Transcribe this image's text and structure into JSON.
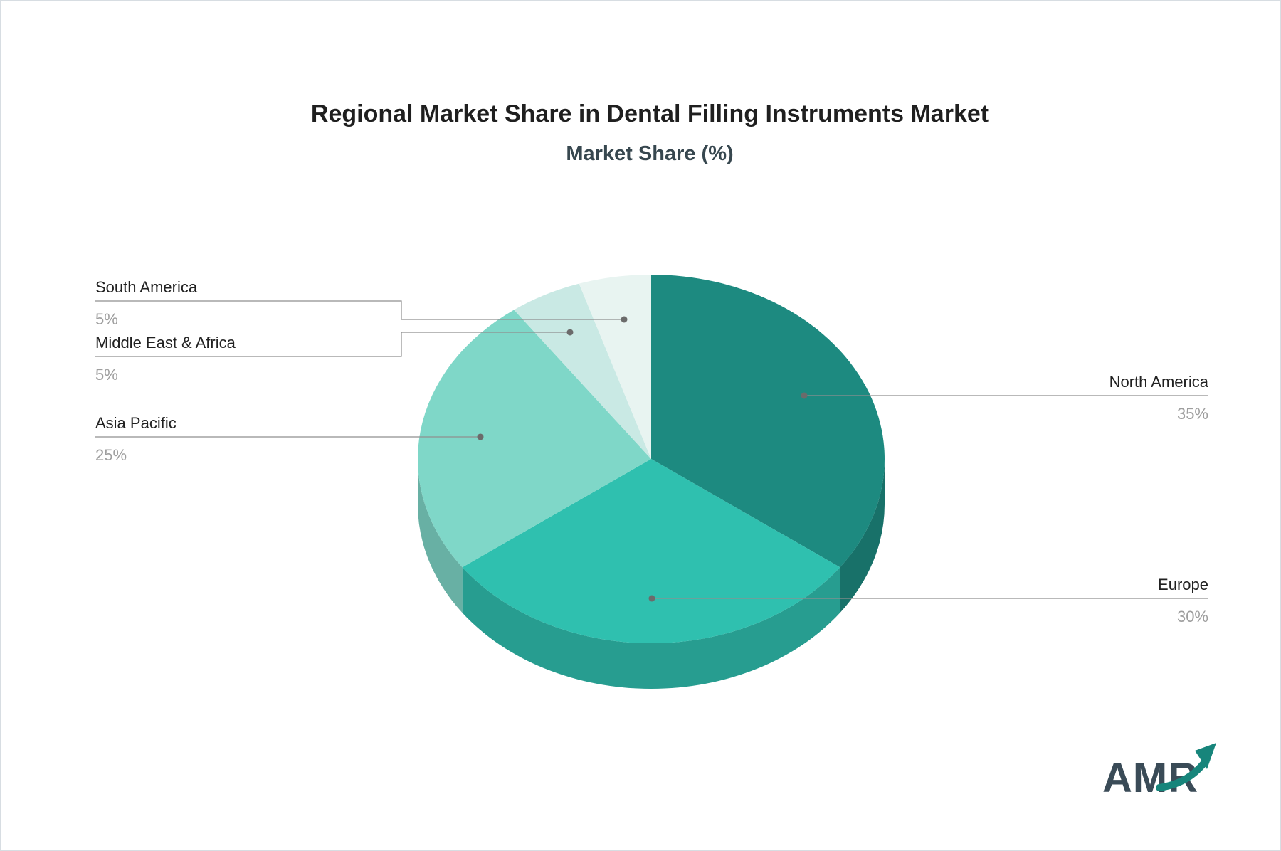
{
  "chart_data": {
    "type": "pie",
    "title": "Regional Market Share in Dental Filling Instruments Market",
    "subtitle": "Market Share (%)",
    "unit": "%",
    "effect": "3d",
    "direction": "clockwise",
    "start_angle_deg": 0,
    "legend_position": "none",
    "label_style": "leader-lines",
    "labels": [
      "North America",
      "Europe",
      "Asia Pacific",
      "Middle East & Africa",
      "South America"
    ],
    "values": [
      35,
      30,
      25,
      5,
      5
    ],
    "colors": [
      "#1d8a80",
      "#2fc0af",
      "#7fd7c8",
      "#c9e9e4",
      "#e8f4f1"
    ]
  },
  "logo": {
    "text": "AMR",
    "text_color": "#3a4b57",
    "arrow_color": "#17857b"
  }
}
